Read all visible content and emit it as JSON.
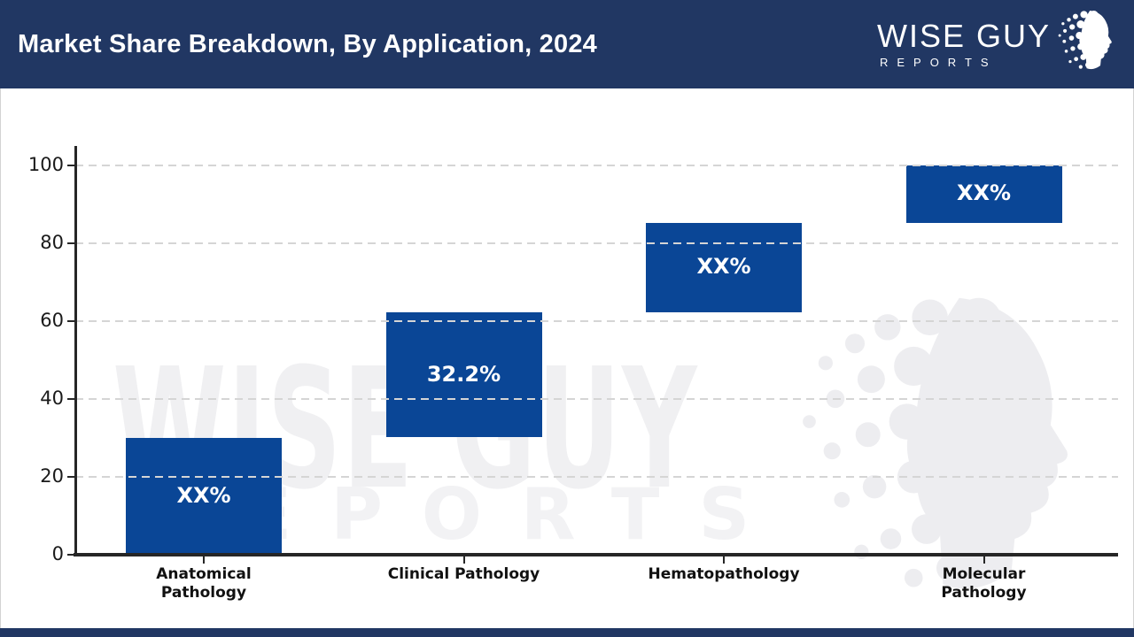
{
  "header": {
    "title": "Market Share Breakdown, By Application, 2024",
    "logo": {
      "line1": "WISE GUY",
      "line2": "REPORTS"
    }
  },
  "watermark": {
    "line1": "WISE GUY",
    "line2": "REPORTS"
  },
  "colors": {
    "header_bg": "#213763",
    "footer_bg": "#213763",
    "bar_fill": "#0a4696",
    "bar_label_text": "#ffffff",
    "axis": "#262626",
    "gridline": "#d5d5d5",
    "tick_text": "#1a1a1a",
    "category_text": "#111111",
    "watermark_text": "#f0f0f2"
  },
  "chart_data": {
    "type": "bar",
    "subtype": "waterfall",
    "title": "Market Share Breakdown, By Application, 2024",
    "xlabel": "",
    "ylabel": "",
    "categories": [
      "Anatomical\nPathology",
      "Clinical Pathology",
      "Hematopathology",
      "Molecular\nPathology"
    ],
    "segments": [
      {
        "category": "Anatomical Pathology",
        "start": 0,
        "end": 30.0,
        "label": "XX%"
      },
      {
        "category": "Clinical Pathology",
        "start": 30.0,
        "end": 62.2,
        "label": "32.2%"
      },
      {
        "category": "Hematopathology",
        "start": 62.2,
        "end": 85.2,
        "label": "XX%"
      },
      {
        "category": "Molecular Pathology",
        "start": 85.2,
        "end": 100,
        "label": "XX%"
      }
    ],
    "yticks": [
      0,
      20,
      40,
      60,
      80,
      100
    ],
    "ylim": [
      0,
      100
    ],
    "grid": "horizontal dashed",
    "legend": "none"
  }
}
